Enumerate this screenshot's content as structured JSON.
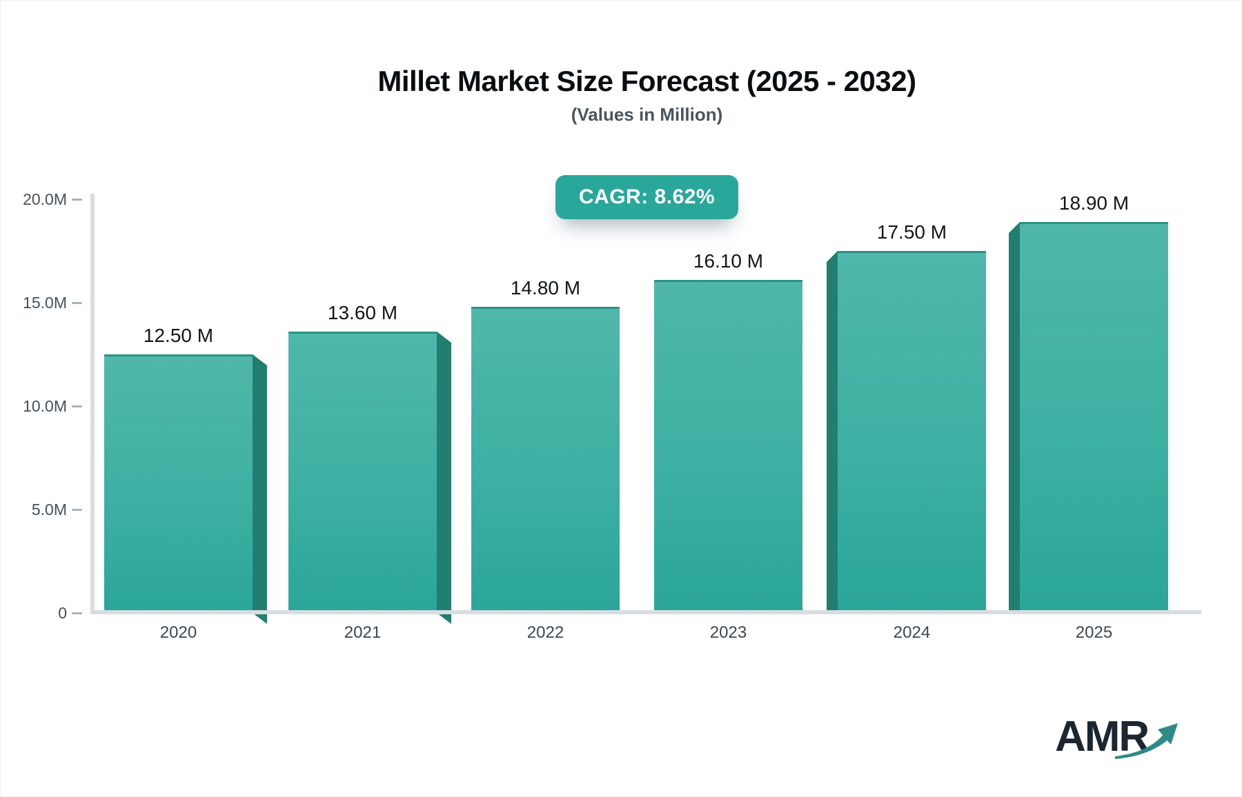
{
  "header": {
    "title": "Millet Market Size Forecast (2025 - 2032)",
    "subtitle": "(Values in Million)",
    "cagr_badge": "CAGR: 8.62%"
  },
  "chart_data": {
    "type": "bar",
    "title": "Millet Market Size Forecast (2025 - 2032)",
    "subtitle": "(Values in Million)",
    "categories": [
      "2020",
      "2021",
      "2022",
      "2023",
      "2024",
      "2025"
    ],
    "values": [
      12.5,
      13.6,
      14.8,
      16.1,
      17.5,
      18.9
    ],
    "bar_labels": [
      "12.50 M",
      "13.60 M",
      "14.80 M",
      "16.10 M",
      "17.50 M",
      "18.90 M"
    ],
    "annotation": "CAGR: 8.62%",
    "xlabel": "",
    "ylabel": "",
    "ylim": [
      0,
      20
    ],
    "y_ticks": [
      {
        "value": 20,
        "label": "20.0M"
      },
      {
        "value": 15,
        "label": "15.0M"
      },
      {
        "value": 10,
        "label": "10.0M"
      },
      {
        "value": 5,
        "label": "5.0M"
      },
      {
        "value": 0,
        "label": "0"
      }
    ],
    "grid": false,
    "legend": "none",
    "extrude_3d": [
      "right",
      "right",
      "none",
      "none",
      "left",
      "left"
    ],
    "colors": {
      "bar_top": "#50b7aa",
      "bar_bottom": "#2aa699",
      "bar_side": "#217e71",
      "bar_top_edge": "#2c9185",
      "axis_line": "#d9dde1",
      "tick_dash": "#a9b0b8",
      "tick_text": "#44505d",
      "value_text": "#12161a",
      "badge_bg": "#2aa79b",
      "badge_text": "#ffffff"
    }
  },
  "logo": {
    "text": "AMR",
    "text_color": "#1b2630",
    "arrow_color": "#2d8a85"
  }
}
